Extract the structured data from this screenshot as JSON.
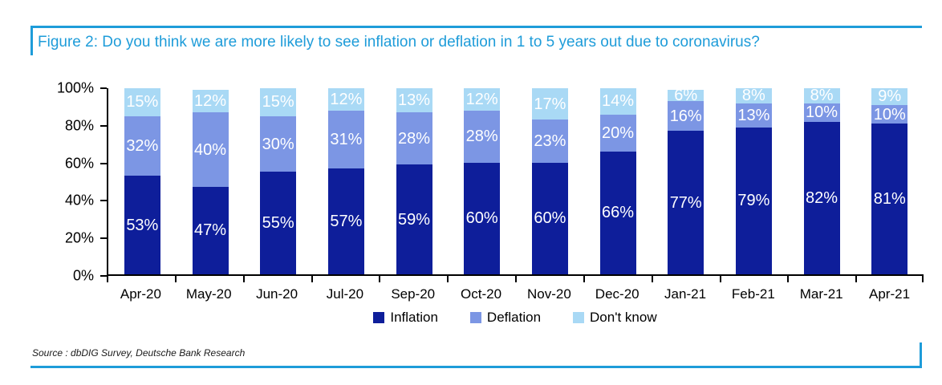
{
  "page": {
    "title": "Figure 2: Do you think we are more likely to see inflation or deflation in 1 to 5 years out due to coronavirus?",
    "source": "Source : dbDIG Survey, Deutsche Bank Research",
    "accent_color": "#1E9CD9"
  },
  "chart_data": {
    "type": "bar",
    "stacked": true,
    "title": "Figure 2: Do you think we are more likely to see inflation or deflation in 1 to 5 years out due to coronavirus?",
    "categories": [
      "Apr-20",
      "May-20",
      "Jun-20",
      "Jul-20",
      "Sep-20",
      "Oct-20",
      "Nov-20",
      "Dec-20",
      "Jan-21",
      "Feb-21",
      "Mar-21",
      "Apr-21"
    ],
    "series": [
      {
        "name": "Inflation",
        "color": "#0E1E9A",
        "values": [
          53,
          47,
          55,
          57,
          59,
          60,
          60,
          66,
          77,
          79,
          82,
          81
        ]
      },
      {
        "name": "Deflation",
        "color": "#7C96E4",
        "values": [
          32,
          40,
          30,
          31,
          28,
          28,
          23,
          20,
          16,
          13,
          10,
          10
        ]
      },
      {
        "name": "Don't know",
        "color": "#A9D9F5",
        "values": [
          15,
          12,
          15,
          12,
          13,
          12,
          17,
          14,
          6,
          8,
          8,
          9
        ]
      }
    ],
    "data_label_suffix": "%",
    "data_label_color": "#ffffff",
    "y_ticks": [
      "100%",
      "80%",
      "60%",
      "40%",
      "20%",
      "0%"
    ],
    "ylim": [
      0,
      100
    ],
    "grid": false,
    "legend_position": "bottom"
  }
}
